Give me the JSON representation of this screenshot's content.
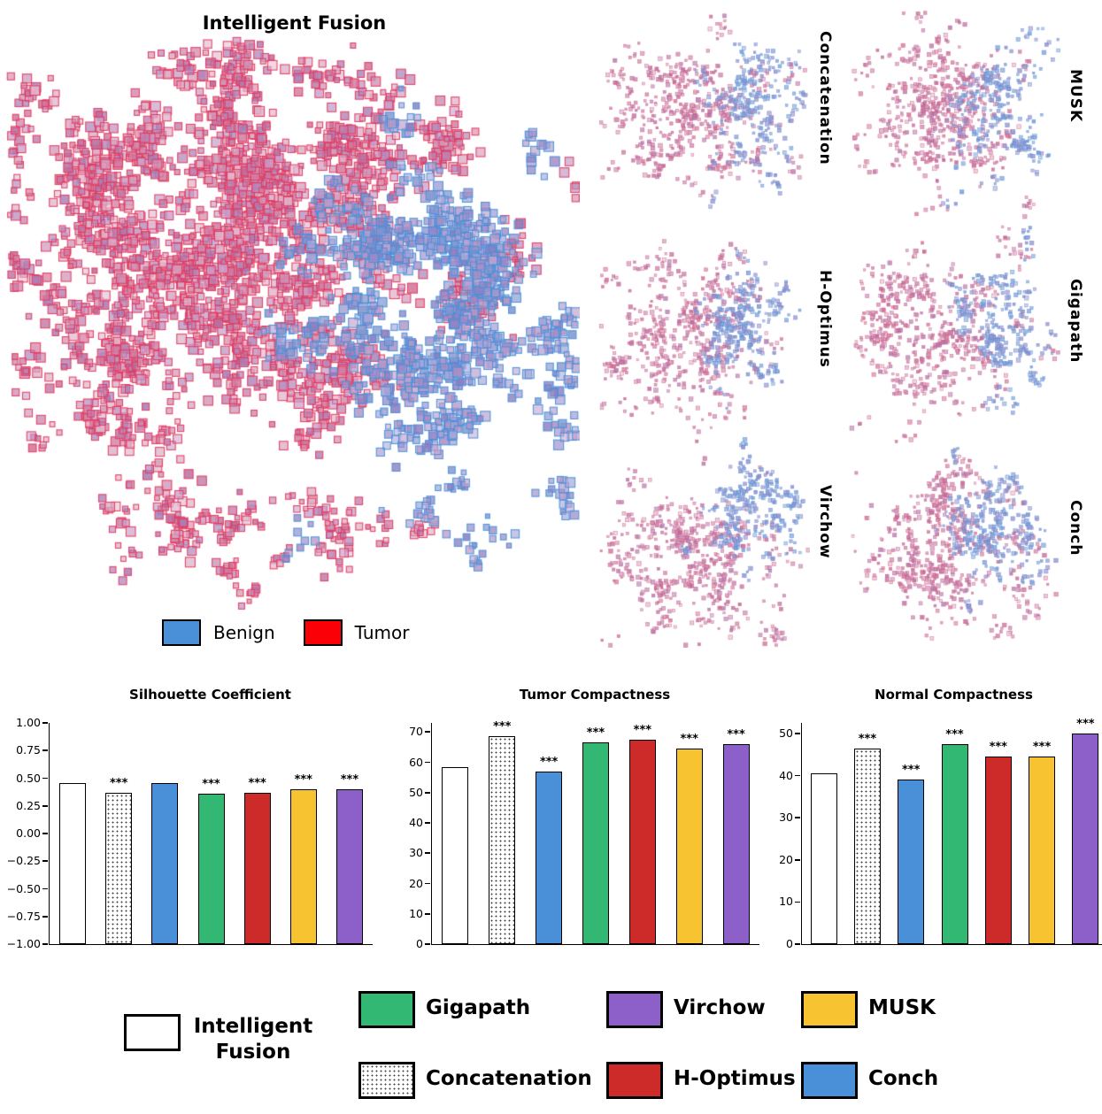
{
  "figure": {
    "main_plot": {
      "title": "Intelligent Fusion",
      "legend": [
        {
          "label": "Benign",
          "color": "#4a90d9"
        },
        {
          "label": "Tumor",
          "color": "#fb0006"
        }
      ]
    },
    "small_plots": [
      {
        "label": "Concatenation"
      },
      {
        "label": "MUSK"
      },
      {
        "label": "H-Optimus"
      },
      {
        "label": "Gigapath"
      },
      {
        "label": "Virchow"
      },
      {
        "label": "Conch"
      }
    ]
  },
  "chart_data": [
    {
      "type": "bar",
      "title": "Silhouette Coefficient",
      "categories": [
        "Intelligent Fusion",
        "Concatenation",
        "Conch",
        "Gigapath",
        "H-Optimus",
        "MUSK",
        "Virchow"
      ],
      "values": [
        0.46,
        0.37,
        0.46,
        0.36,
        0.37,
        0.4,
        0.4
      ],
      "significance": [
        "",
        "***",
        "",
        "***",
        "***",
        "***",
        "***"
      ],
      "ylim": [
        -1.0,
        1.0
      ],
      "render_ylim": [
        -1.0,
        1.0
      ],
      "bar_bottom": -1.0,
      "yticks": [
        1.0,
        0.75,
        0.5,
        0.25,
        0.0,
        -0.25,
        -0.5,
        -0.75,
        -1.0
      ],
      "ytick_labels": [
        "1.00",
        "0.75",
        "0.50",
        "0.25",
        "0.00",
        "−0.25",
        "−0.50",
        "−0.75",
        "−1.00"
      ],
      "grid": false,
      "legend_position": "below-figure"
    },
    {
      "type": "bar",
      "title": "Tumor Compactness",
      "categories": [
        "Intelligent Fusion",
        "Concatenation",
        "Conch",
        "Gigapath",
        "H-Optimus",
        "MUSK",
        "Virchow"
      ],
      "values": [
        58.5,
        68.5,
        57,
        66.5,
        67.5,
        64.5,
        66
      ],
      "significance": [
        "",
        "***",
        "***",
        "***",
        "***",
        "***",
        "***"
      ],
      "ylim": [
        0,
        70
      ],
      "render_ylim": [
        0,
        73
      ],
      "bar_bottom": 0,
      "yticks": [
        70,
        60,
        50,
        40,
        30,
        20,
        10,
        0
      ],
      "ytick_labels": [
        "70",
        "60",
        "50",
        "40",
        "30",
        "20",
        "10",
        "0"
      ],
      "grid": false,
      "legend_position": "below-figure"
    },
    {
      "type": "bar",
      "title": "Normal Compactness",
      "categories": [
        "Intelligent Fusion",
        "Concatenation",
        "Conch",
        "Gigapath",
        "H-Optimus",
        "MUSK",
        "Virchow"
      ],
      "values": [
        40.5,
        46.5,
        39,
        47.5,
        44.5,
        44.5,
        50
      ],
      "significance": [
        "",
        "***",
        "***",
        "***",
        "***",
        "***",
        "***"
      ],
      "ylim": [
        0,
        50
      ],
      "render_ylim": [
        0,
        52.5
      ],
      "bar_bottom": 0,
      "yticks": [
        50,
        40,
        30,
        20,
        10,
        0
      ],
      "ytick_labels": [
        "50",
        "40",
        "30",
        "20",
        "10",
        "0"
      ],
      "grid": false,
      "legend_position": "below-figure"
    }
  ],
  "bar_styles": [
    {
      "name": "Intelligent Fusion",
      "fill": "#ffffff",
      "pattern": "none"
    },
    {
      "name": "Concatenation",
      "fill": "#ffffff",
      "pattern": "dots"
    },
    {
      "name": "Conch",
      "fill": "#4a90d9",
      "pattern": "none"
    },
    {
      "name": "Gigapath",
      "fill": "#33b873",
      "pattern": "none"
    },
    {
      "name": "H-Optimus",
      "fill": "#cd2a2a",
      "pattern": "none"
    },
    {
      "name": "MUSK",
      "fill": "#f7c331",
      "pattern": "none"
    },
    {
      "name": "Virchow",
      "fill": "#8d5fc9",
      "pattern": "none"
    }
  ],
  "bottom_legend": {
    "items": [
      {
        "label": "Intelligent Fusion",
        "style": "Intelligent Fusion"
      },
      {
        "label": "Gigapath",
        "style": "Gigapath"
      },
      {
        "label": "Virchow",
        "style": "Virchow"
      },
      {
        "label": "MUSK",
        "style": "MUSK"
      },
      {
        "label": "Concatenation",
        "style": "Concatenation"
      },
      {
        "label": "H-Optimus",
        "style": "H-Optimus"
      },
      {
        "label": "Conch",
        "style": "Conch"
      }
    ]
  },
  "significance_marker": "***",
  "tsne_style": {
    "tumor_stroke": "#e23a5e",
    "benign_stroke": "#4a90d9",
    "tumor_stroke_small": "rgba(205,85,125,0.85)",
    "benign_stroke_small": "rgba(85,135,205,0.85)",
    "tumor_fills": [
      "#d9a6c2",
      "#cf8fb4",
      "#c07fae",
      "#b589bb",
      "#caa0cb",
      "#e3bcd2",
      "#a97fb8",
      "#d2789f",
      "#bb6f9f"
    ],
    "benign_fills_main": [
      "#9d89c8",
      "#ab8fc5",
      "#8f7fc0",
      "#b79ac8",
      "#c4a3cf",
      "#8598cf",
      "#a9a6d8"
    ],
    "benign_fills_small": [
      "#7ba3dc",
      "#93b4e4",
      "#9f93cf",
      "#b0a0d8",
      "#8b9fd6",
      "#a192cd"
    ]
  }
}
